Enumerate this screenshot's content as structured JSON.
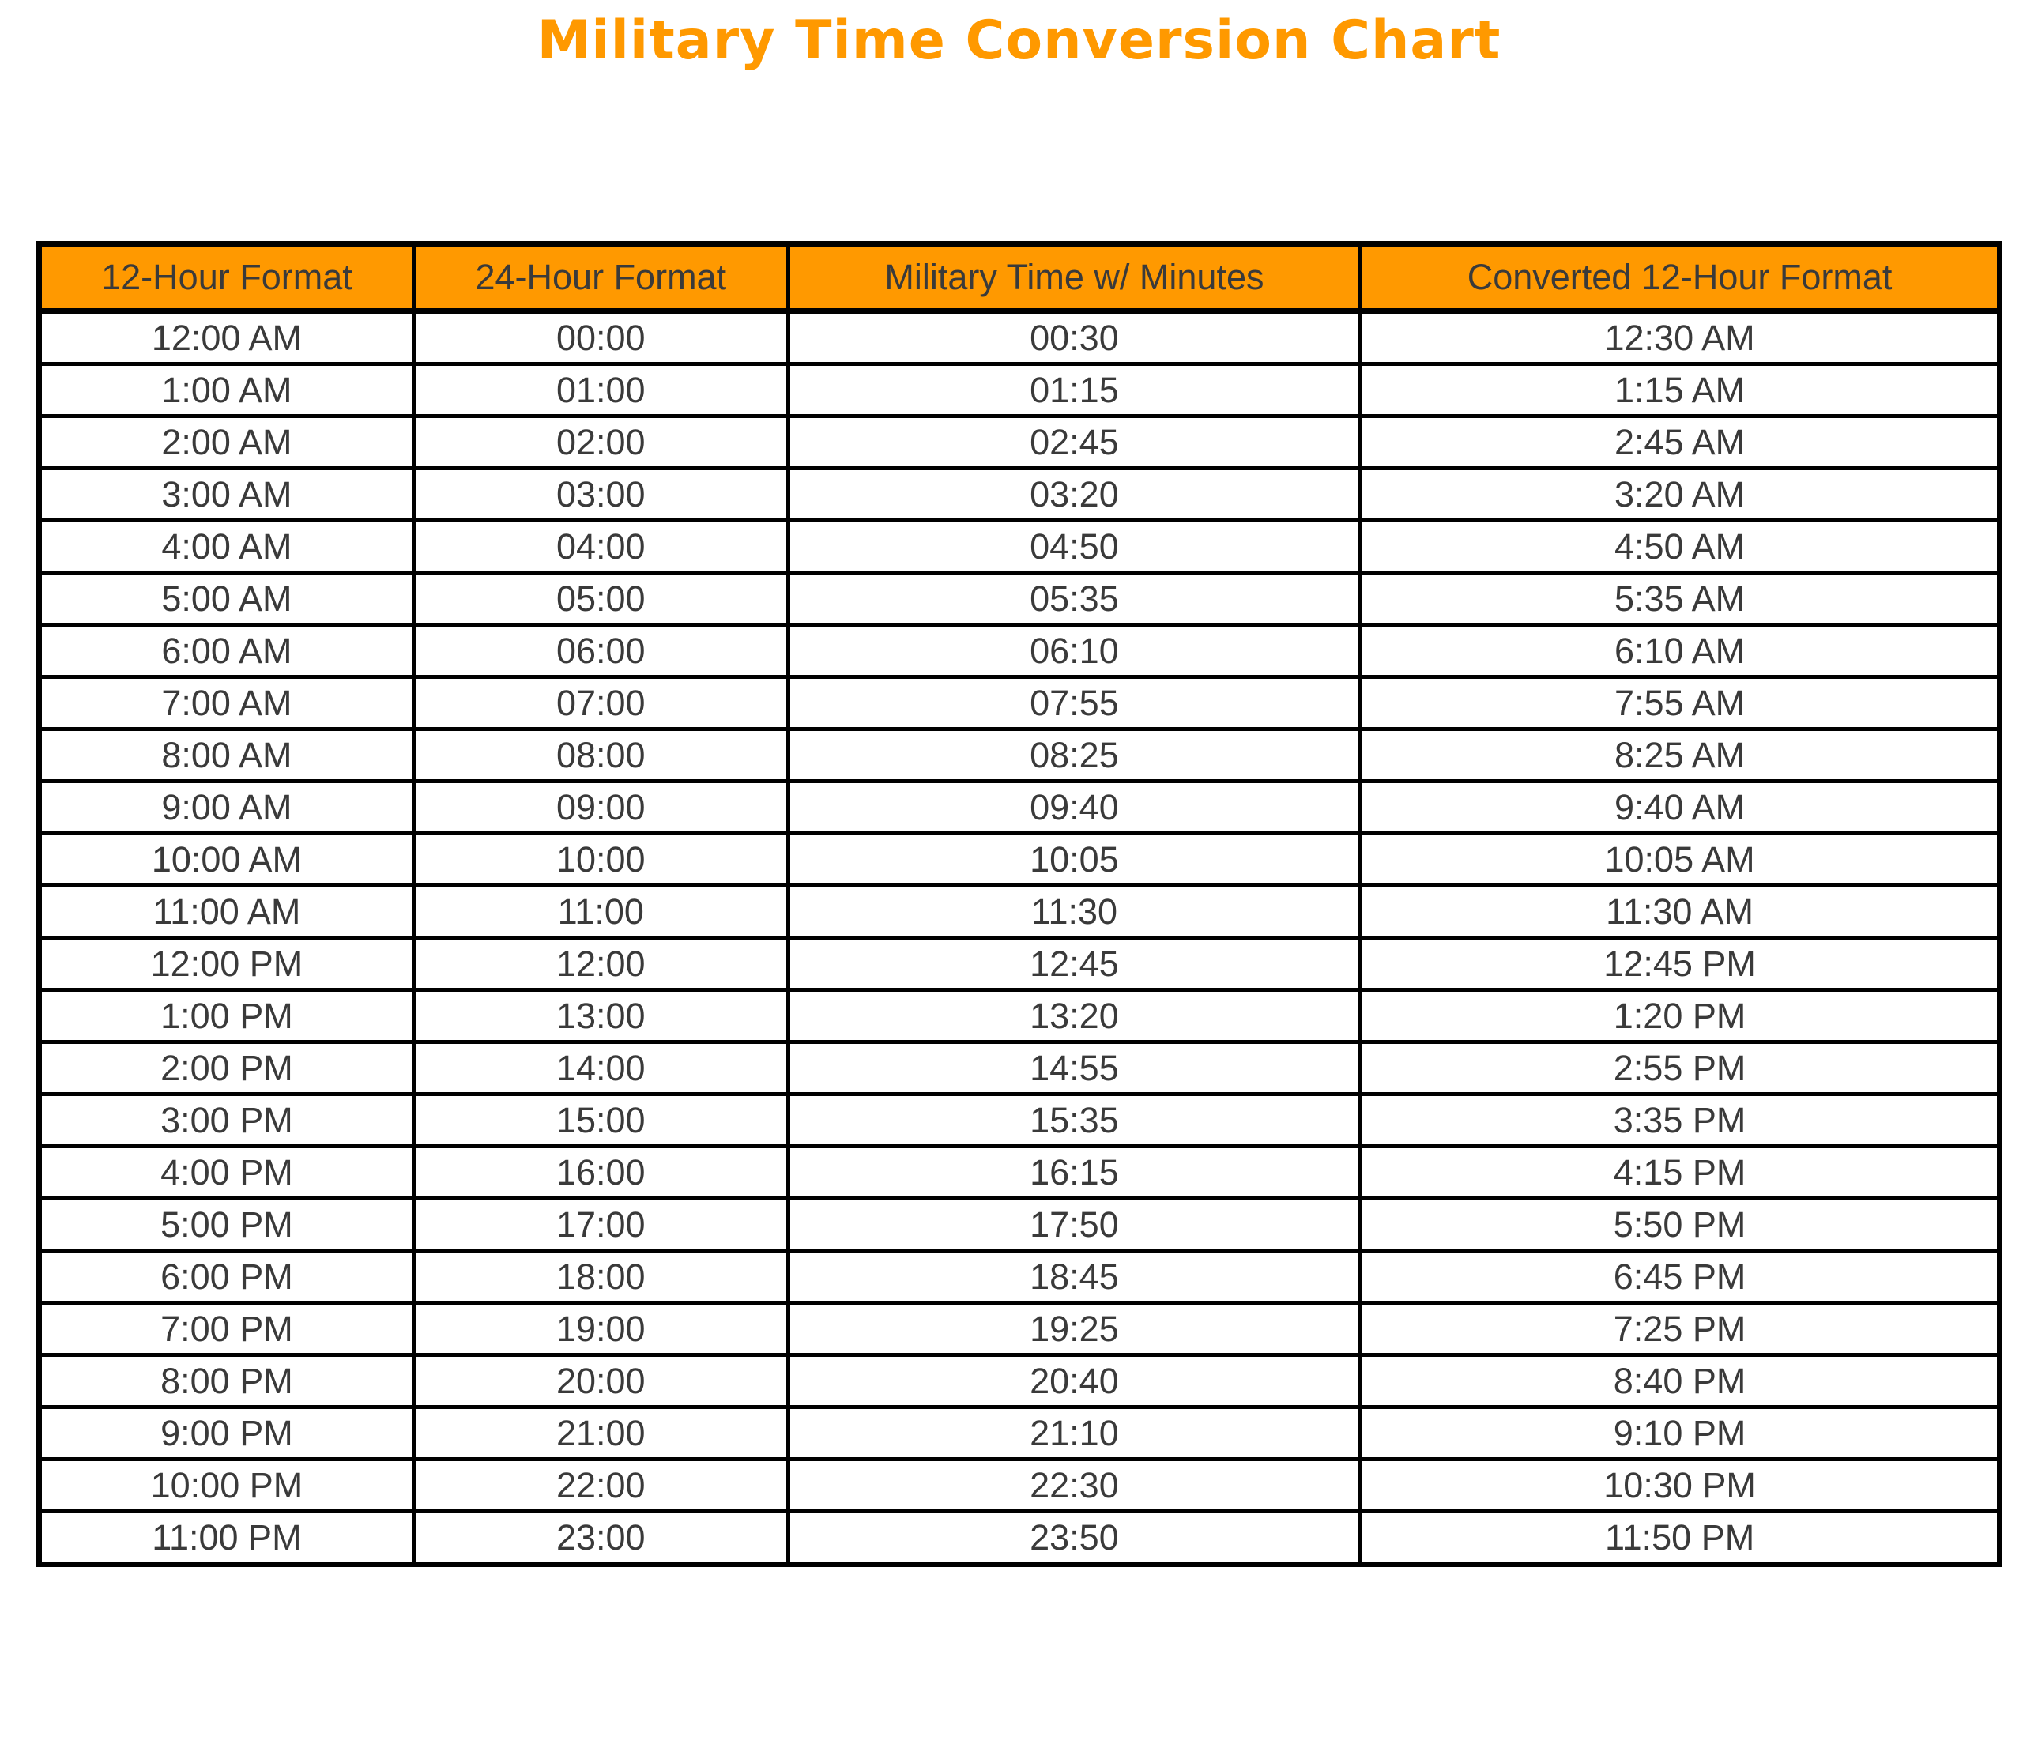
{
  "title": "Military Time Conversion Chart",
  "colors": {
    "accent_orange": "#FF9900",
    "header_background": "#FF9900",
    "text_gray": "#3A3A3A",
    "grid_border": "#000000",
    "page_background": "#FFFFFF"
  },
  "chart_data": {
    "type": "table",
    "title": "Military Time Conversion Chart",
    "columns": [
      "12-Hour Format",
      "24-Hour Format",
      "Military Time w/ Minutes",
      "Converted 12-Hour Format"
    ],
    "rows": [
      [
        "12:00 AM",
        "00:00",
        "00:30",
        "12:30 AM"
      ],
      [
        "1:00 AM",
        "01:00",
        "01:15",
        "1:15 AM"
      ],
      [
        "2:00 AM",
        "02:00",
        "02:45",
        "2:45 AM"
      ],
      [
        "3:00 AM",
        "03:00",
        "03:20",
        "3:20 AM"
      ],
      [
        "4:00 AM",
        "04:00",
        "04:50",
        "4:50 AM"
      ],
      [
        "5:00 AM",
        "05:00",
        "05:35",
        "5:35 AM"
      ],
      [
        "6:00 AM",
        "06:00",
        "06:10",
        "6:10 AM"
      ],
      [
        "7:00 AM",
        "07:00",
        "07:55",
        "7:55 AM"
      ],
      [
        "8:00 AM",
        "08:00",
        "08:25",
        "8:25 AM"
      ],
      [
        "9:00 AM",
        "09:00",
        "09:40",
        "9:40 AM"
      ],
      [
        "10:00 AM",
        "10:00",
        "10:05",
        "10:05 AM"
      ],
      [
        "11:00 AM",
        "11:00",
        "11:30",
        "11:30 AM"
      ],
      [
        "12:00 PM",
        "12:00",
        "12:45",
        "12:45 PM"
      ],
      [
        "1:00 PM",
        "13:00",
        "13:20",
        "1:20 PM"
      ],
      [
        "2:00 PM",
        "14:00",
        "14:55",
        "2:55 PM"
      ],
      [
        "3:00 PM",
        "15:00",
        "15:35",
        "3:35 PM"
      ],
      [
        "4:00 PM",
        "16:00",
        "16:15",
        "4:15 PM"
      ],
      [
        "5:00 PM",
        "17:00",
        "17:50",
        "5:50 PM"
      ],
      [
        "6:00 PM",
        "18:00",
        "18:45",
        "6:45 PM"
      ],
      [
        "7:00 PM",
        "19:00",
        "19:25",
        "7:25 PM"
      ],
      [
        "8:00 PM",
        "20:00",
        "20:40",
        "8:40 PM"
      ],
      [
        "9:00 PM",
        "21:00",
        "21:10",
        "9:10 PM"
      ],
      [
        "10:00 PM",
        "22:00",
        "22:30",
        "10:30 PM"
      ],
      [
        "11:00 PM",
        "23:00",
        "23:50",
        "11:50 PM"
      ]
    ]
  }
}
